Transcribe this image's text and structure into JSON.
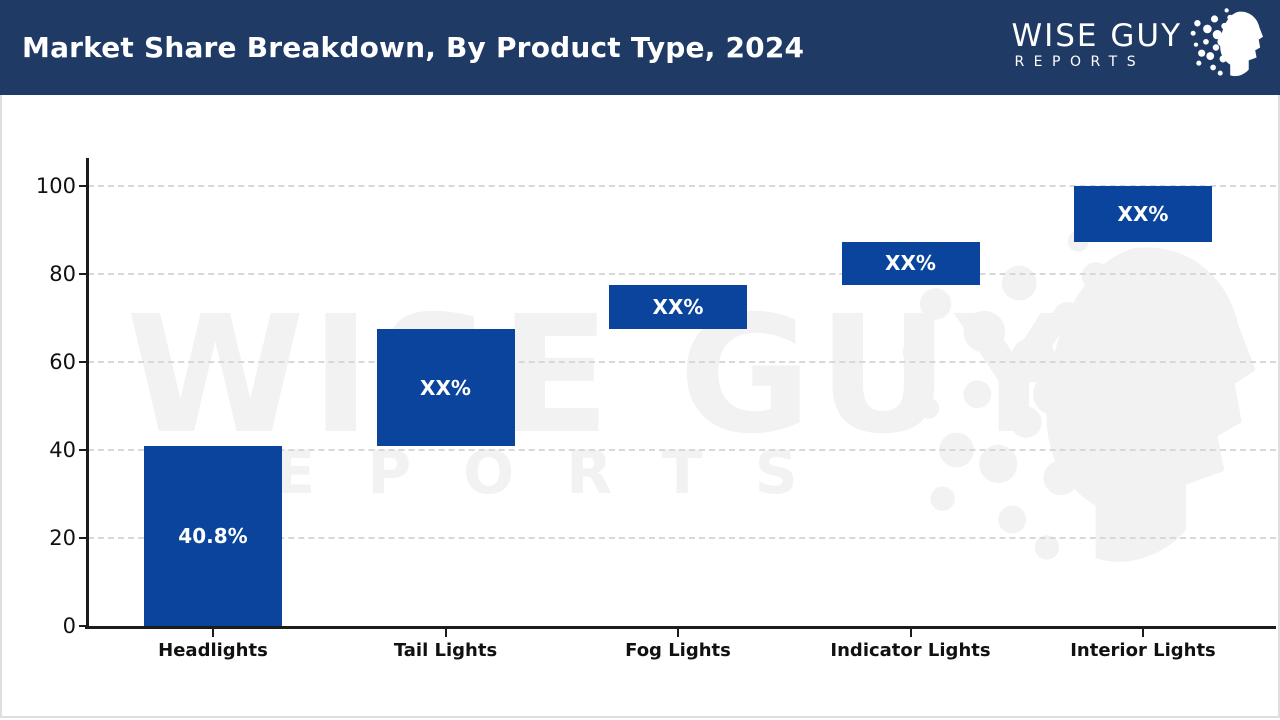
{
  "header": {
    "title": "Market Share Breakdown, By Product Type, 2024",
    "logo": {
      "line1": "WISE GUY",
      "line2": "REPORTS"
    }
  },
  "watermark": {
    "line1": "WISE GUY",
    "line2": "REPORTS"
  },
  "colors": {
    "header_bg": "#203a66",
    "bar_blue": "#0a449c",
    "grid_gray": "#d8d8d8",
    "watermark_gray": "#f2f2f2"
  },
  "chart_data": {
    "type": "bar",
    "variant": "waterfall",
    "title": "Market Share Breakdown, By Product Type, 2024",
    "categories": [
      "Headlights",
      "Tail Lights",
      "Fog Lights",
      "Indicator Lights",
      "Interior Lights"
    ],
    "segments": [
      {
        "category": "Headlights",
        "start": 0,
        "end": 40.8,
        "label": "40.8%"
      },
      {
        "category": "Tail Lights",
        "start": 40.8,
        "end": 67.5,
        "label": "XX%"
      },
      {
        "category": "Fog Lights",
        "start": 67.5,
        "end": 77.6,
        "label": "XX%"
      },
      {
        "category": "Indicator Lights",
        "start": 77.6,
        "end": 87.3,
        "label": "XX%"
      },
      {
        "category": "Interior Lights",
        "start": 87.3,
        "end": 100,
        "label": "XX%"
      }
    ],
    "xlabel": "",
    "ylabel": "",
    "ylim": [
      0,
      100
    ],
    "yticks": [
      0,
      20,
      40,
      60,
      80,
      100
    ],
    "grid": "horizontal-dashed",
    "legend": "none",
    "bar_color": "#0a449c",
    "bar_label_color": "#ffffff",
    "axis_color": "#1c1c1c"
  }
}
